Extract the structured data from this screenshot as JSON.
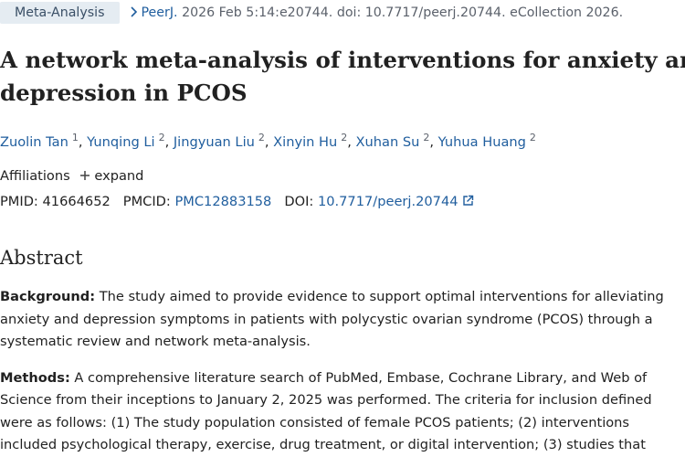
{
  "publication_type": "Meta-Analysis",
  "citation": {
    "journal": "PeerJ.",
    "details": "2026 Feb 5:14:e20744. doi: 10.7717/peerj.20744. eCollection 2026."
  },
  "title": "A network meta-analysis of interventions for anxiety and depression in PCOS",
  "authors": [
    {
      "name": "Zuolin Tan",
      "affiliation": "1"
    },
    {
      "name": "Yunqing Li",
      "affiliation": "2"
    },
    {
      "name": "Jingyuan Liu",
      "affiliation": "2"
    },
    {
      "name": "Xinyin Hu",
      "affiliation": "2"
    },
    {
      "name": "Xuhan Su",
      "affiliation": "2"
    },
    {
      "name": "Yuhua Huang",
      "affiliation": "2"
    }
  ],
  "author_separator": ",",
  "affiliations": {
    "label": "Affiliations",
    "toggle": "expand"
  },
  "identifiers": [
    {
      "label": "PMID:",
      "value": "41664652"
    },
    {
      "label": "PMCID:",
      "value": "PMC12883158"
    },
    {
      "label": "DOI:",
      "value": "10.7717/peerj.20744"
    }
  ],
  "abstract": {
    "heading": "Abstract",
    "sections": [
      {
        "label": "Background:",
        "text": "The study aimed to provide evidence to support optimal interventions for alleviating anxiety and depression symptoms in patients with polycystic ovarian syndrome (PCOS) through a systematic review and network meta-analysis."
      },
      {
        "label": "Methods:",
        "text": "A comprehensive literature search of PubMed, Embase, Cochrane Library, and Web of Science from their inceptions to January 2, 2025 was performed. The criteria for inclusion defined were as follows: (1) The study population consisted of female PCOS patients; (2) interventions included psychological therapy, exercise, drug treatment, or digital intervention; (3) studies that"
      }
    ]
  }
}
